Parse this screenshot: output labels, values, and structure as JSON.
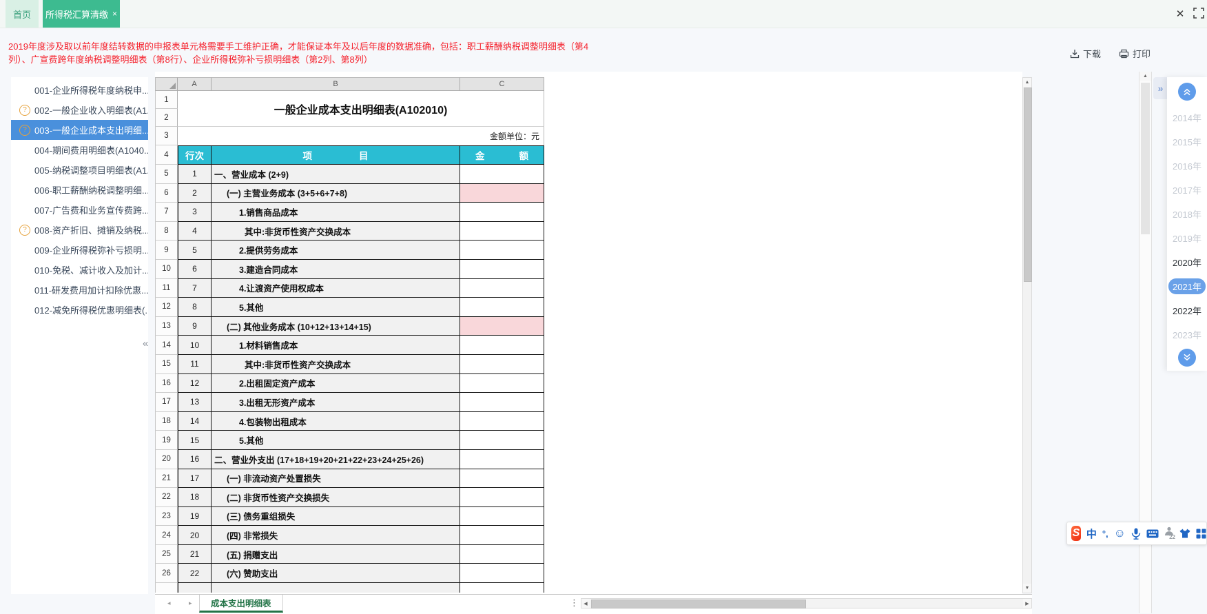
{
  "tabs": {
    "home": "首页",
    "active": "所得税汇算清缴",
    "close": "×",
    "window_close": "✕"
  },
  "notice": {
    "line1": "2019年度涉及取以前年度结转数据的申报表单元格需要手工维护正确，才能保证本年及以后年度的数据准确，包括：职工薪酬纳税调整明细表（第4",
    "line2": "列）、广宣费跨年度纳税调整明细表（第8行）、企业所得税弥补亏损明细表（第2列、第8列）"
  },
  "actions": {
    "download": "下载",
    "print": "打印"
  },
  "sidebar": {
    "collapse": "«",
    "items": [
      {
        "label": "001-企业所得税年度纳税申...",
        "hint": false,
        "selected": false
      },
      {
        "label": "002-一般企业收入明细表(A1...",
        "hint": true,
        "selected": false
      },
      {
        "label": "003-一般企业成本支出明细...",
        "hint": true,
        "selected": true
      },
      {
        "label": "004-期间费用明细表(A1040...",
        "hint": false,
        "selected": false
      },
      {
        "label": "005-纳税调整项目明细表(A1...",
        "hint": false,
        "selected": false
      },
      {
        "label": "006-职工薪酬纳税调整明细...",
        "hint": false,
        "selected": false
      },
      {
        "label": "007-广告费和业务宣传费跨...",
        "hint": false,
        "selected": false
      },
      {
        "label": "008-资产折旧、摊销及纳税...",
        "hint": true,
        "selected": false
      },
      {
        "label": "009-企业所得税弥补亏损明...",
        "hint": false,
        "selected": false
      },
      {
        "label": "010-免税、减计收入及加计...",
        "hint": false,
        "selected": false
      },
      {
        "label": "011-研发费用加计扣除优惠...",
        "hint": false,
        "selected": false
      },
      {
        "label": "012-减免所得税优惠明细表(...",
        "hint": false,
        "selected": false
      }
    ]
  },
  "sheet": {
    "columns": [
      "A",
      "B",
      "C"
    ],
    "title": "一般企业成本支出明细表(A102010)",
    "unit": "金额单位：元",
    "header": {
      "line": "行次",
      "item_l": "项",
      "item_r": "目",
      "amt_l": "金",
      "amt_r": "额"
    },
    "rows": [
      {
        "num": 5,
        "line": "1",
        "text": "一、营业成本 (2+9)",
        "indent": 0,
        "pink": false
      },
      {
        "num": 6,
        "line": "2",
        "text": "(一) 主营业务成本 (3+5+6+7+8)",
        "indent": 1,
        "pink": true
      },
      {
        "num": 7,
        "line": "3",
        "text": "1.销售商品成本",
        "indent": 2,
        "pink": false
      },
      {
        "num": 8,
        "line": "4",
        "text": "其中:非货币性资产交换成本",
        "indent": 3,
        "pink": false
      },
      {
        "num": 9,
        "line": "5",
        "text": "2.提供劳务成本",
        "indent": 2,
        "pink": false
      },
      {
        "num": 10,
        "line": "6",
        "text": "3.建造合同成本",
        "indent": 2,
        "pink": false
      },
      {
        "num": 11,
        "line": "7",
        "text": "4.让渡资产使用权成本",
        "indent": 2,
        "pink": false
      },
      {
        "num": 12,
        "line": "8",
        "text": "5.其他",
        "indent": 2,
        "pink": false
      },
      {
        "num": 13,
        "line": "9",
        "text": "(二) 其他业务成本 (10+12+13+14+15)",
        "indent": 1,
        "pink": true
      },
      {
        "num": 14,
        "line": "10",
        "text": "1.材料销售成本",
        "indent": 2,
        "pink": false
      },
      {
        "num": 15,
        "line": "11",
        "text": "其中:非货币性资产交换成本",
        "indent": 3,
        "pink": false
      },
      {
        "num": 16,
        "line": "12",
        "text": "2.出租固定资产成本",
        "indent": 2,
        "pink": false
      },
      {
        "num": 17,
        "line": "13",
        "text": "3.出租无形资产成本",
        "indent": 2,
        "pink": false
      },
      {
        "num": 18,
        "line": "14",
        "text": "4.包装物出租成本",
        "indent": 2,
        "pink": false
      },
      {
        "num": 19,
        "line": "15",
        "text": "5.其他",
        "indent": 2,
        "pink": false
      },
      {
        "num": 20,
        "line": "16",
        "text": "二、营业外支出 (17+18+19+20+21+22+23+24+25+26)",
        "indent": 0,
        "pink": false
      },
      {
        "num": 21,
        "line": "17",
        "text": "(一) 非流动资产处置损失",
        "indent": 1,
        "pink": false
      },
      {
        "num": 22,
        "line": "18",
        "text": "(二) 非货币性资产交换损失",
        "indent": 1,
        "pink": false
      },
      {
        "num": 23,
        "line": "19",
        "text": "(三) 债务重组损失",
        "indent": 1,
        "pink": false
      },
      {
        "num": 24,
        "line": "20",
        "text": "(四) 非常损失",
        "indent": 1,
        "pink": false
      },
      {
        "num": 25,
        "line": "21",
        "text": "(五) 捐赠支出",
        "indent": 1,
        "pink": false
      },
      {
        "num": 26,
        "line": "22",
        "text": "(六) 赞助支出",
        "indent": 1,
        "pink": false
      }
    ],
    "nav_arrows": "◂ ▸",
    "tab": "成本支出明细表",
    "more": "⋮"
  },
  "years": {
    "items": [
      {
        "label": "2014年",
        "state": "dim"
      },
      {
        "label": "2015年",
        "state": "dim"
      },
      {
        "label": "2016年",
        "state": "dim"
      },
      {
        "label": "2017年",
        "state": "dim"
      },
      {
        "label": "2018年",
        "state": "dim"
      },
      {
        "label": "2019年",
        "state": "dim"
      },
      {
        "label": "2020年",
        "state": "normal"
      },
      {
        "label": "2021年",
        "state": "active"
      },
      {
        "label": "2022年",
        "state": "normal"
      },
      {
        "label": "2023年",
        "state": "dim"
      }
    ]
  },
  "ime": {
    "mode": "中",
    "punct": "°,",
    "smiley": "☺",
    "badge": "22"
  },
  "colors": {
    "accent_green": "#3dbb90",
    "selected_blue": "#4a90dc",
    "header_teal": "#2abdd3",
    "pink_cell": "#f9d7da",
    "warning_red": "#f5222d",
    "sheet_tab_green": "#217346",
    "year_active": "#6aa1e8"
  }
}
